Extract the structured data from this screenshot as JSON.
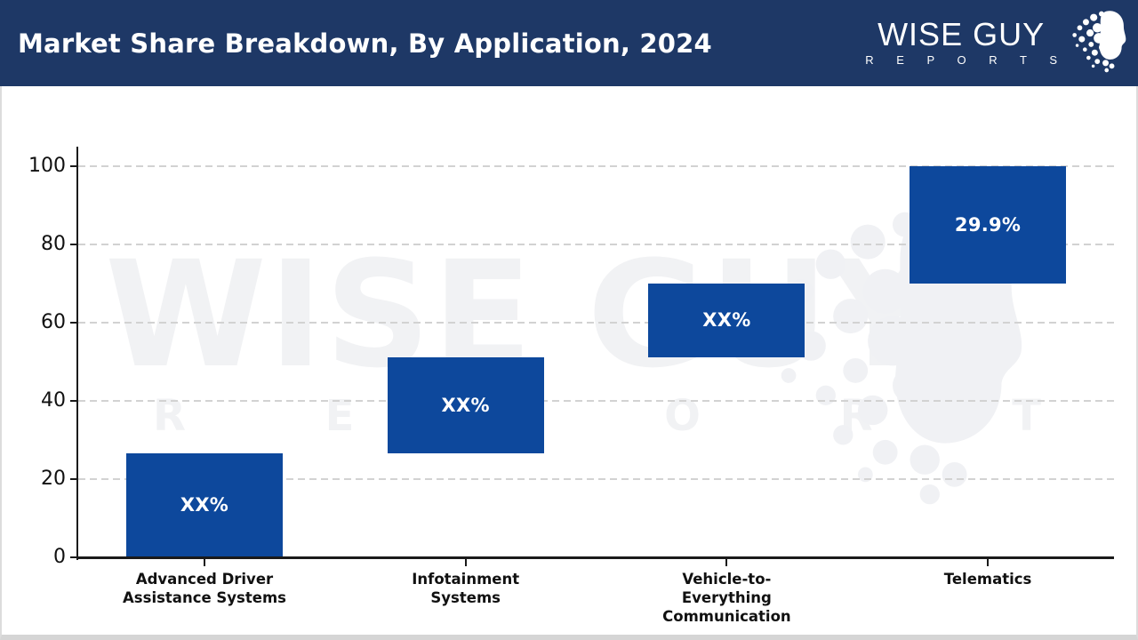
{
  "header": {
    "title": "Market Share Breakdown, By Application, 2024",
    "background_color": "#1e3866",
    "logo": {
      "line1": "WISE GUY",
      "line2": "R E P O R T S"
    }
  },
  "watermark": {
    "line1": "WISE GUY",
    "line2": "R E P O R T S"
  },
  "chart_data": {
    "type": "bar",
    "variant": "floating-waterfall",
    "title": "Market Share Breakdown, By Application, 2024",
    "categories": [
      {
        "name": "Advanced Driver Assistance Systems",
        "lines": [
          "Advanced Driver",
          "Assistance Systems"
        ]
      },
      {
        "name": "Infotainment Systems",
        "lines": [
          "Infotainment",
          "Systems"
        ]
      },
      {
        "name": "Vehicle-to-Everything Communication",
        "lines": [
          "Vehicle-to-",
          "Everything",
          "Communication"
        ]
      },
      {
        "name": "Telematics",
        "lines": [
          "Telematics"
        ]
      }
    ],
    "series": [
      {
        "name": "Market Share",
        "segments": [
          {
            "start": 0,
            "end": 26.6,
            "label": "XX%"
          },
          {
            "start": 26.6,
            "end": 51.2,
            "label": "XX%"
          },
          {
            "start": 51.2,
            "end": 70.1,
            "label": "XX%"
          },
          {
            "start": 70.1,
            "end": 100,
            "label": "29.9%"
          }
        ]
      }
    ],
    "ylim": [
      0,
      100
    ],
    "yticks": [
      0,
      20,
      40,
      60,
      80,
      100
    ],
    "grid": "horizontal dashed",
    "bar_color": "#0d489c",
    "bar_label_color": "#ffffff",
    "axis_color": "#1a1a1a"
  }
}
